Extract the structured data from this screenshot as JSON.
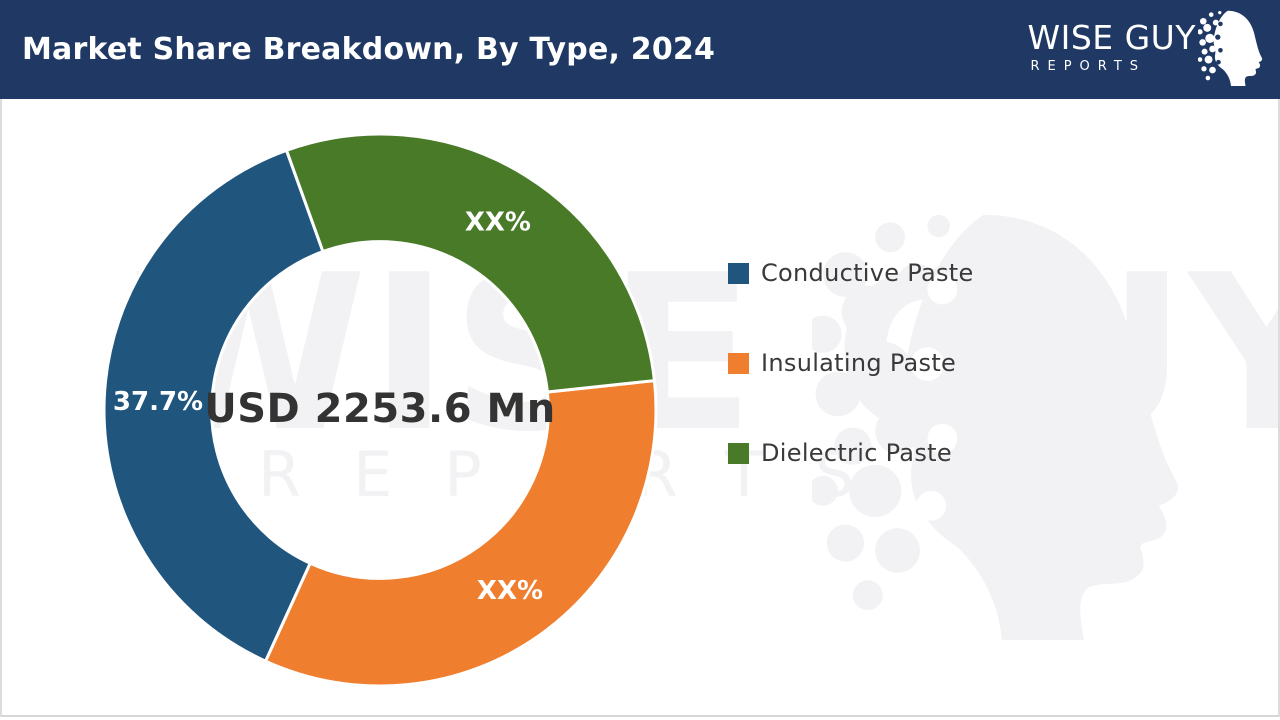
{
  "header": {
    "title": "Market Share Breakdown, By Type, 2024",
    "logo": {
      "name": "WISE GUY",
      "sub": "REPORTS"
    }
  },
  "watermark": {
    "text": "WISE GUY",
    "sub": "REPORTS"
  },
  "chart_data": {
    "type": "pie",
    "variant": "donut",
    "title": "Market Share Breakdown, By Type, 2024",
    "center_label": "USD 2253.6 Mn",
    "hole_ratio": 0.61,
    "start_angle_deg": 109.8,
    "direction": "ccw",
    "legend_position": "right",
    "slice_label_color": "#FFFFFF",
    "categories": [
      "Conductive Paste",
      "Insulating Paste",
      "Dielectric Paste"
    ],
    "series": [
      {
        "name": "Conductive Paste",
        "share_pct": 37.7,
        "label": "37.7%",
        "color": "#20567E"
      },
      {
        "name": "Insulating Paste",
        "share_pct": 33.5,
        "label": "XX%",
        "color": "#EF7E2E"
      },
      {
        "name": "Dielectric Paste",
        "share_pct": 28.8,
        "label": "XX%",
        "color": "#487A27"
      }
    ]
  },
  "colors": {
    "header_bg": "#1F3864",
    "center_text": "#333333",
    "legend_text": "#3A3A3A",
    "watermark": "#F2F2F4",
    "border": "#D9D9D9"
  }
}
